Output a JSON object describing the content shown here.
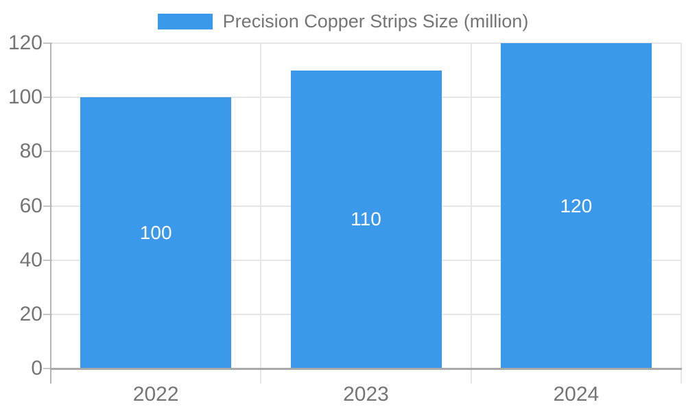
{
  "legend": {
    "label": "Precision Copper Strips Size (million)"
  },
  "colors": {
    "bar": "#3b99ec",
    "grid": "#e6e6e6",
    "axis_line": "#b5b5b5",
    "baseline": "#a9a9a9",
    "tick": "#c4c4c4",
    "text": "#757575",
    "bar_label_text": "#ffffff"
  },
  "chart_data": {
    "type": "bar",
    "title": "",
    "xlabel": "",
    "ylabel": "",
    "categories": [
      "2022",
      "2023",
      "2024"
    ],
    "series": [
      {
        "name": "Precision Copper Strips Size (million)",
        "values": [
          100,
          110,
          120
        ]
      }
    ],
    "bar_value_labels": [
      "100",
      "110",
      "120"
    ],
    "ylim": [
      0,
      120
    ],
    "yticks": [
      0,
      20,
      40,
      60,
      80,
      100,
      120
    ],
    "grid": true,
    "legend_position": "top"
  }
}
